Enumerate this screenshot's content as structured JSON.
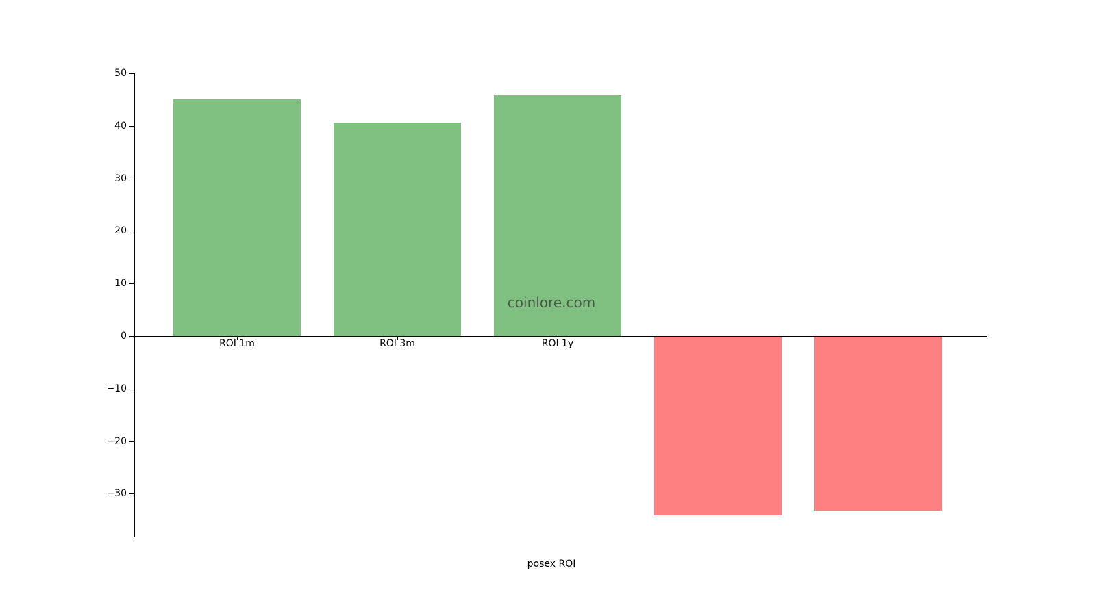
{
  "watermark": "coinlore.com",
  "chart_data": {
    "type": "bar",
    "title": "",
    "xlabel": "posex ROI",
    "ylabel": "",
    "categories": [
      "ROI 1m",
      "ROI 3m",
      "ROI 1y",
      "",
      ""
    ],
    "values": [
      45.0,
      40.6,
      45.8,
      -34.1,
      -33.2
    ],
    "series_note": "single series; positive bars green, negative bars red",
    "yticks": [
      50,
      40,
      30,
      20,
      10,
      0,
      -10,
      -20,
      -30
    ],
    "ytick_labels": [
      "50",
      "40",
      "30",
      "20",
      "10",
      "0",
      "−10",
      "−20",
      "−30"
    ],
    "ylim": [
      -38,
      50
    ],
    "grid": false,
    "legend": "none",
    "positive_color": "#80c080",
    "negative_color": "#ff8080",
    "axis_color": "#000000"
  }
}
